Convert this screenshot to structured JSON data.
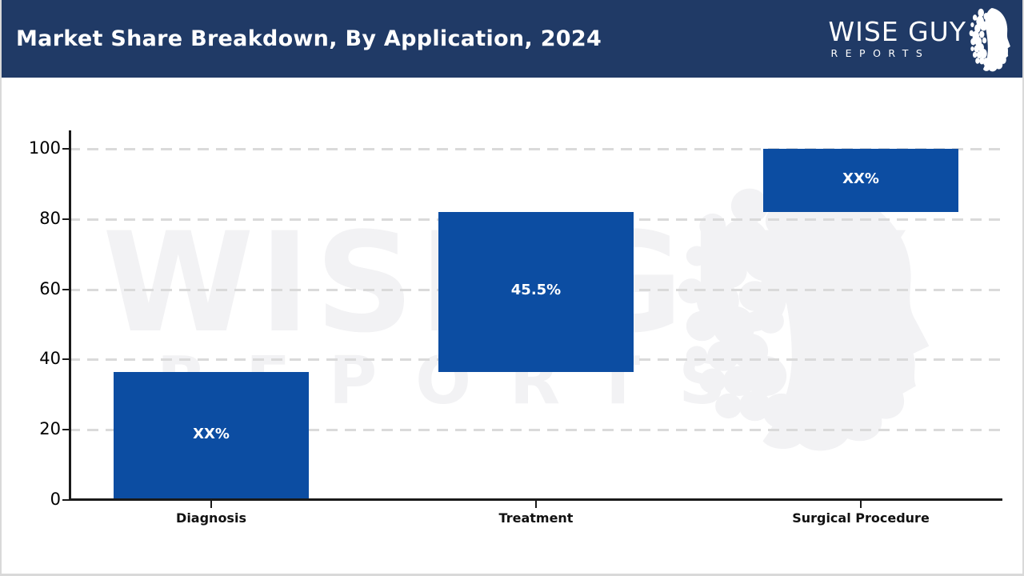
{
  "header": {
    "title": "Market Share Breakdown, By Application, 2024",
    "logo": {
      "line1": "WISE GUY",
      "line2": "REPORTS"
    }
  },
  "watermark": {
    "line1": "WISE GUY",
    "line2": "REPORTS"
  },
  "chart_data": {
    "type": "bar",
    "subtype": "floating-waterfall",
    "title": "Market Share Breakdown, By Application, 2024",
    "categories": [
      "Diagnosis",
      "Treatment",
      "Surgical Procedure"
    ],
    "bars": [
      {
        "category": "Diagnosis",
        "start": 0,
        "end": 36.5,
        "label": "XX%"
      },
      {
        "category": "Treatment",
        "start": 36.5,
        "end": 82,
        "label": "45.5%"
      },
      {
        "category": "Surgical Procedure",
        "start": 82,
        "end": 100,
        "label": "XX%"
      }
    ],
    "yticks": [
      0,
      20,
      40,
      60,
      80,
      100
    ],
    "ylim": [
      0,
      105
    ],
    "xlabel": "",
    "ylabel": "",
    "grid": "horizontal-dashed",
    "legend": "none",
    "bar_color": "#0c4da2"
  },
  "colors": {
    "header_bg": "#203a66",
    "bar": "#0c4da2",
    "axis": "#1a1a1a",
    "grid": "#dadada",
    "watermark": "#f2f2f4",
    "label_on_bar": "#ffffff"
  }
}
